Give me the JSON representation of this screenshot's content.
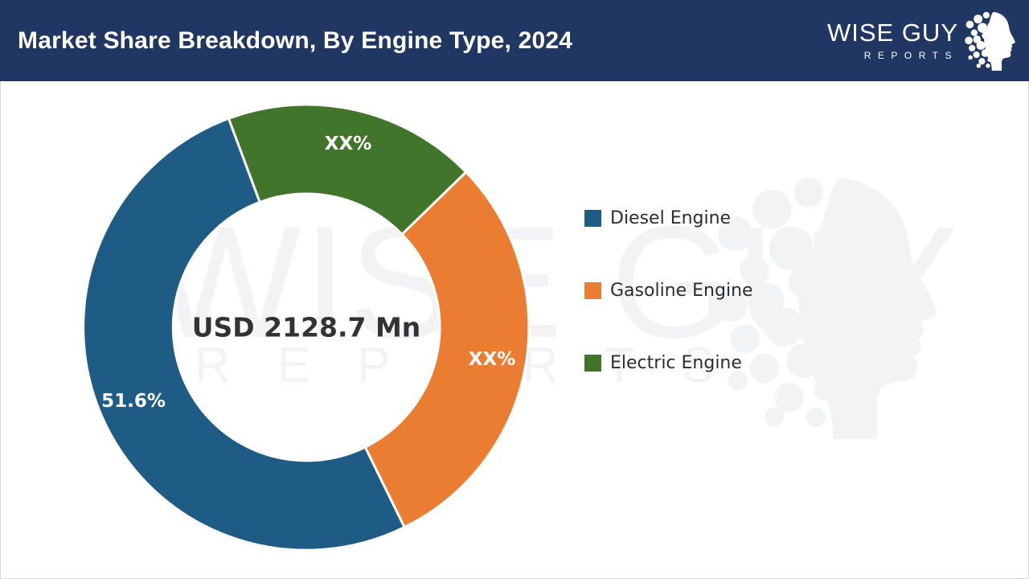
{
  "header": {
    "title": "Market Share Breakdown, By Engine Type, 2024"
  },
  "logo": {
    "line1": "WISE GUY",
    "line2": "REPORTS"
  },
  "watermark": {
    "line1": "WISE GUY",
    "line2": "REPORTS"
  },
  "colors": {
    "header_bar": "#203663",
    "diesel_blue": "#1F5C85",
    "gasoline_orange": "#EB7D33",
    "electric_green": "#41752B",
    "center_text": "#333333",
    "watermark_gray": "#f3f3f5"
  },
  "chart_data": {
    "type": "pie",
    "subtype": "donut",
    "title": "Market Share Breakdown, By Engine Type, 2024",
    "center_label": "USD 2128.7 Mn",
    "legend_position": "right",
    "donut_hole_ratio": 0.6,
    "start_angle_deg": -20.4,
    "draw_order": [
      2,
      1,
      0
    ],
    "slices": [
      {
        "name": "Diesel Engine",
        "share_pct": 51.6,
        "display_label": "51.6%",
        "color": "#1F5C85"
      },
      {
        "name": "Gasoline Engine",
        "share_pct": 30.0,
        "display_label": "XX%",
        "color": "#EB7D33"
      },
      {
        "name": "Electric Engine",
        "share_pct": 18.4,
        "display_label": "XX%",
        "color": "#41752B"
      }
    ]
  }
}
